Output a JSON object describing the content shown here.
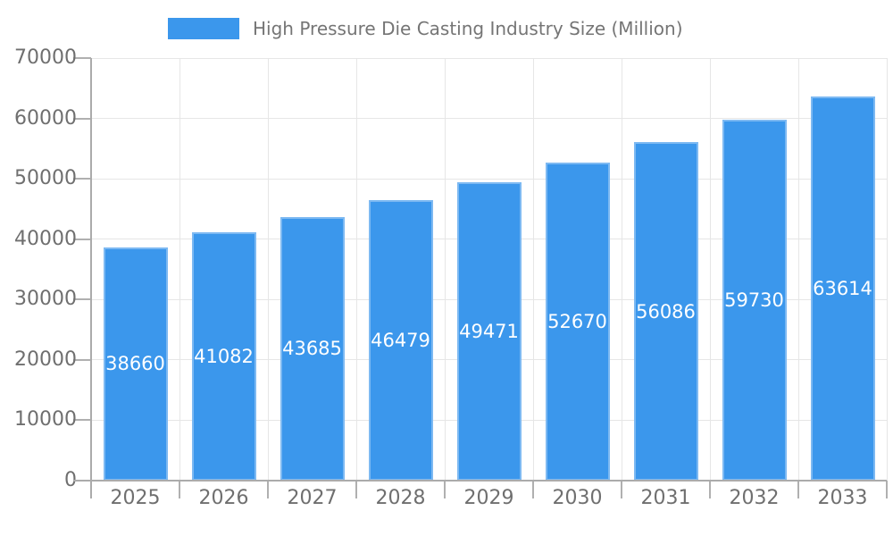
{
  "chart_data": {
    "type": "bar",
    "title": "High Pressure Die Casting Industry Size (Million)",
    "legend_position": "top",
    "categories": [
      "2025",
      "2026",
      "2027",
      "2028",
      "2029",
      "2030",
      "2031",
      "2032",
      "2033"
    ],
    "series": [
      {
        "name": "High Pressure Die Casting Industry Size (Million)",
        "values": [
          38660,
          41082,
          43685,
          46479,
          49471,
          52670,
          56086,
          59730,
          63614
        ]
      }
    ],
    "bar_value_labels": [
      "38660",
      "41082",
      "43685",
      "46479",
      "49471",
      "52670",
      "56086",
      "59730",
      "63614"
    ],
    "xlabel": "",
    "ylabel": "",
    "ylim": [
      0,
      70000
    ],
    "ytick_step": 10000,
    "ytick_labels": [
      "0",
      "10000",
      "20000",
      "30000",
      "40000",
      "50000",
      "60000",
      "70000"
    ],
    "grid": true,
    "value_labels_inside_bars": true,
    "colors": {
      "bar_fill": "#3B97EC",
      "bar_border": "#7DB9F2",
      "bar_label_text": "#FFFFFF",
      "axis_text": "#6F6F6F",
      "legend_text": "#757575",
      "gridline": "#E6E6E6",
      "axis_line": "#ABABAB",
      "background": "#FFFFFF"
    }
  }
}
